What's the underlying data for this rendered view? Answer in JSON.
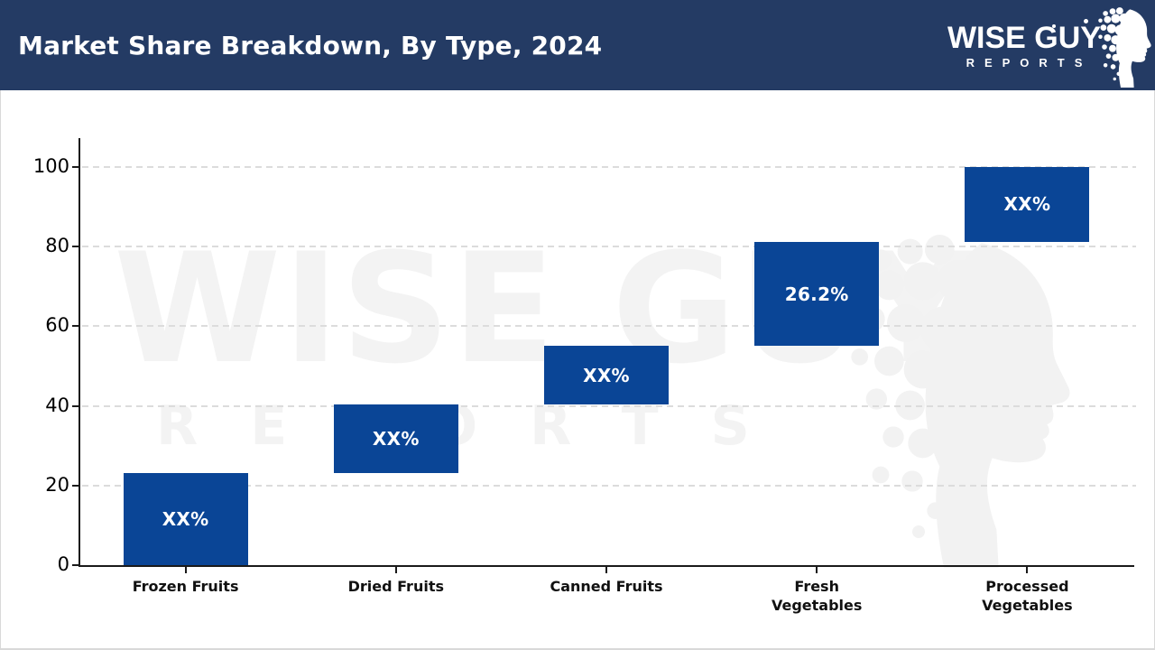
{
  "header": {
    "title": "Market Share Breakdown, By Type, 2024",
    "brand": {
      "name": "WISE GUY",
      "tagline": "REPORTS"
    }
  },
  "watermark": {
    "text": "WISE GUY",
    "subtext": "REPORTS"
  },
  "chart_data": {
    "type": "bar",
    "subtype": "floating-waterfall",
    "title": "Market Share Breakdown, By Type, 2024",
    "categories": [
      "Frozen Fruits",
      "Dried Fruits",
      "Canned Fruits",
      "Fresh Vegetables",
      "Processed Vegetables"
    ],
    "bars": [
      {
        "category": "Frozen Fruits",
        "start": 0,
        "end": 23.2,
        "label": "XX%"
      },
      {
        "category": "Dried Fruits",
        "start": 23.2,
        "end": 40.4,
        "label": "XX%"
      },
      {
        "category": "Canned Fruits",
        "start": 40.4,
        "end": 55.0,
        "label": "XX%"
      },
      {
        "category": "Fresh Vegetables",
        "start": 55.0,
        "end": 81.2,
        "label": "26.2%"
      },
      {
        "category": "Processed Vegetables",
        "start": 81.2,
        "end": 100,
        "label": "XX%"
      }
    ],
    "values": [
      23.2,
      17.2,
      14.6,
      26.2,
      18.8
    ],
    "y_ticks": [
      0,
      20,
      40,
      60,
      80,
      100
    ],
    "ylim": [
      0,
      107
    ],
    "xlabel": "",
    "ylabel": "",
    "grid": "horizontal-dashed",
    "legend": "none"
  },
  "colors": {
    "header_bg": "#243b64",
    "bar_blue": "#0a4596",
    "axis": "#1a1a1a",
    "gridline": "#dcdcdc",
    "watermark": "#f2f2f2",
    "frame_border": "#d9d9d9",
    "bar_label": "#ffffff"
  }
}
